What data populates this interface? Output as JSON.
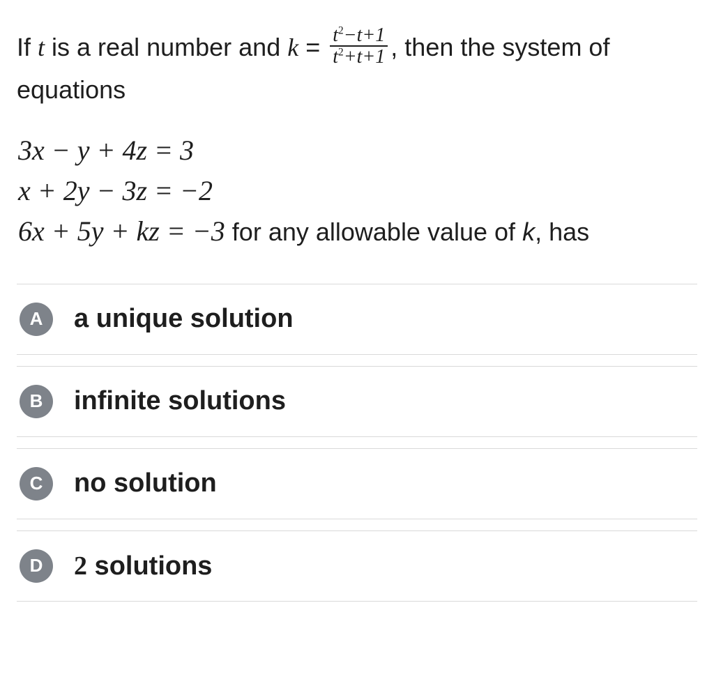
{
  "question": {
    "line1_prefix": "If ",
    "var_t": "t",
    "line1_mid": " is a real number and ",
    "var_k": "k",
    "eq_sign": " = ",
    "fraction": {
      "numerator_html": "t<span class='sup'>2</span>−t+1",
      "denominator_html": "t<span class='sup'>2</span>+t+1"
    },
    "line1_suffix": ", then the system of",
    "line2": "equations",
    "eq1": "3x − y + 4z = 3",
    "eq2": "x + 2y − 3z = −2",
    "eq3_lhs": "6x + 5y + kz = −3",
    "eq3_tail_a": " for any allowable value of ",
    "eq3_tail_k": "k",
    "eq3_tail_b": ", has"
  },
  "options": [
    {
      "letter": "A",
      "text": "a unique solution"
    },
    {
      "letter": "B",
      "text": "infinite solutions"
    },
    {
      "letter": "C",
      "text": "no solution"
    },
    {
      "letter": "D",
      "text_prefix_num": "2",
      "text_rest": " solutions"
    }
  ],
  "style": {
    "badge_bg": "#7e838a",
    "divider": "#d9d9d9",
    "text": "#1e1e1e"
  }
}
